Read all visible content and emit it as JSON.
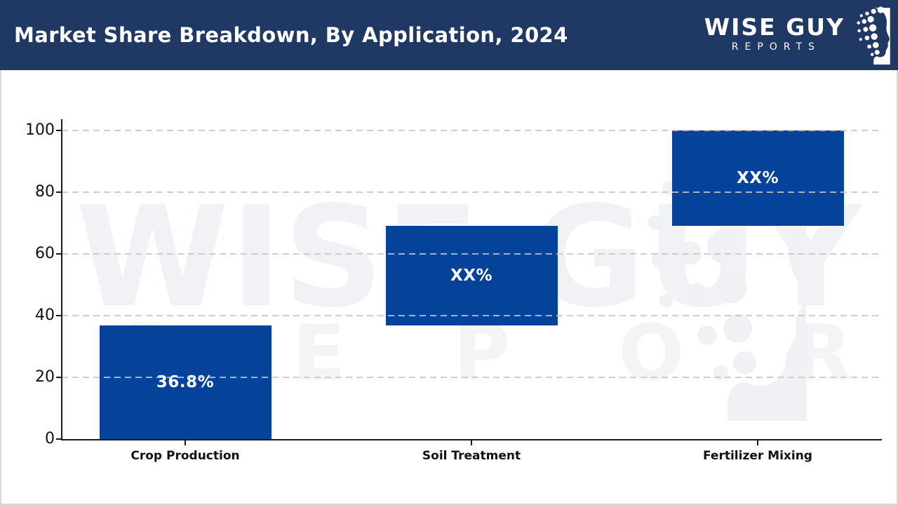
{
  "header": {
    "title": "Market Share Breakdown, By Application, 2024",
    "logo_line1": "WISE GUY",
    "logo_line2": "REPORTS"
  },
  "watermark": {
    "line1": "WISE GUY",
    "line2": "R E P O R T S"
  },
  "colors": {
    "header_bg": "#203864",
    "bar_fill": "#05439b",
    "grid": "#c6c6c6",
    "axis": "#1a1a1a",
    "watermark_text": "#f1f2f5"
  },
  "chart_data": {
    "type": "bar",
    "subtype": "waterfall",
    "title": "Market Share Breakdown, By Application, 2024",
    "categories": [
      "Crop Production",
      "Soil Treatment",
      "Fertilizer Mixing"
    ],
    "values": [
      36.8,
      32.3,
      30.9
    ],
    "segments": [
      {
        "category": "Crop Production",
        "start": 0,
        "end": 36.8,
        "label": "36.8%"
      },
      {
        "category": "Soil Treatment",
        "start": 36.8,
        "end": 69.1,
        "label": "XX%"
      },
      {
        "category": "Fertilizer Mixing",
        "start": 69.1,
        "end": 100,
        "label": "XX%"
      }
    ],
    "xlabel": "",
    "ylabel": "",
    "yticks": [
      0,
      20,
      40,
      60,
      80,
      100
    ],
    "ylim": [
      0,
      103.6
    ],
    "grid": "horizontal-dashed-over-bars",
    "legend": "none"
  }
}
